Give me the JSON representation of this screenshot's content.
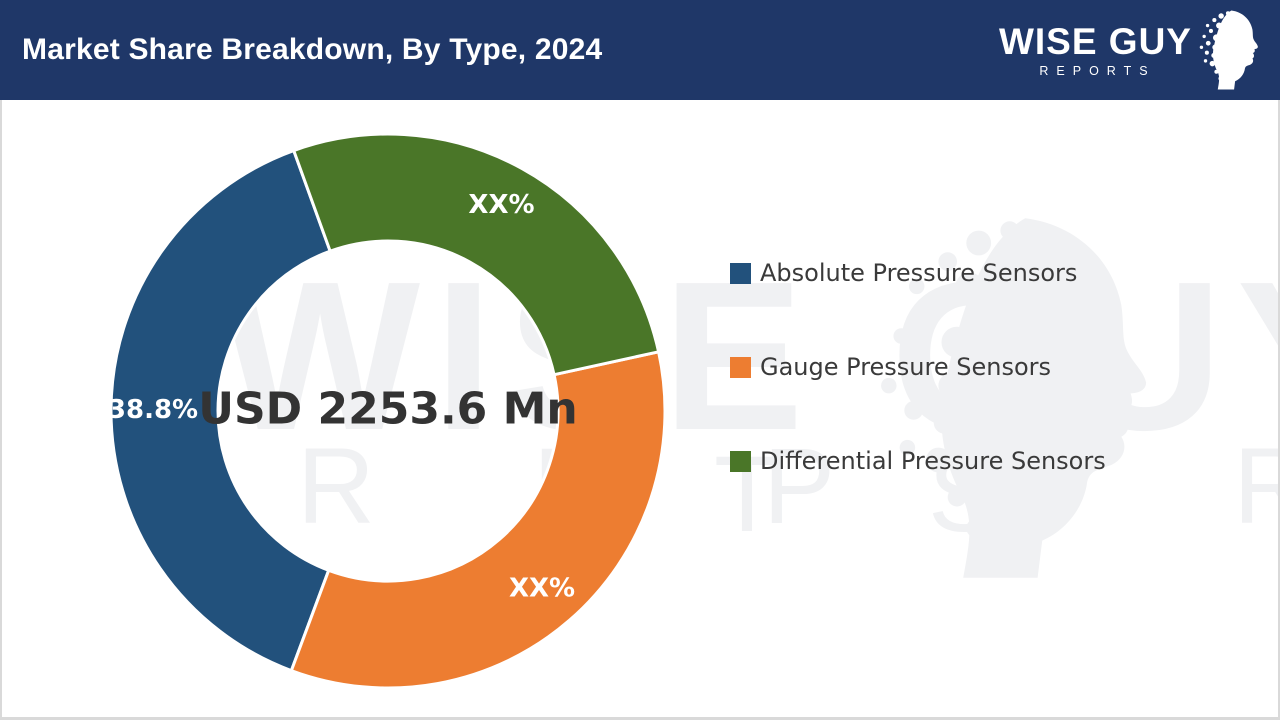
{
  "header": {
    "title": "Market Share Breakdown, By Type, 2024",
    "bg_color": "#1f3768",
    "logo": {
      "brand": "WISE GUY",
      "reports": "REPORTS"
    }
  },
  "chart_data": {
    "type": "pie",
    "subtype": "donut",
    "title": "Market Share Breakdown, By Type, 2024",
    "center_label": "USD 2253.6 Mn",
    "start_angle_deg": 109.9,
    "direction": "counterclockwise",
    "inner_radius_ratio": 0.61,
    "legend_position": "right",
    "segments": [
      {
        "name": "Absolute Pressure Sensors",
        "display_label": "38.8%",
        "value_pct": 38.8,
        "color": "#22517c"
      },
      {
        "name": "Gauge Pressure Sensors",
        "display_label": "XX%",
        "value_pct": 34.1,
        "color": "#ed7d31"
      },
      {
        "name": "Differential Pressure Sensors",
        "display_label": "XX%",
        "value_pct": 27.1,
        "color": "#4a7628"
      }
    ]
  },
  "watermark": {
    "brand": "WISE GUY",
    "reports": "R E P O R T S",
    "extra": "T S"
  }
}
